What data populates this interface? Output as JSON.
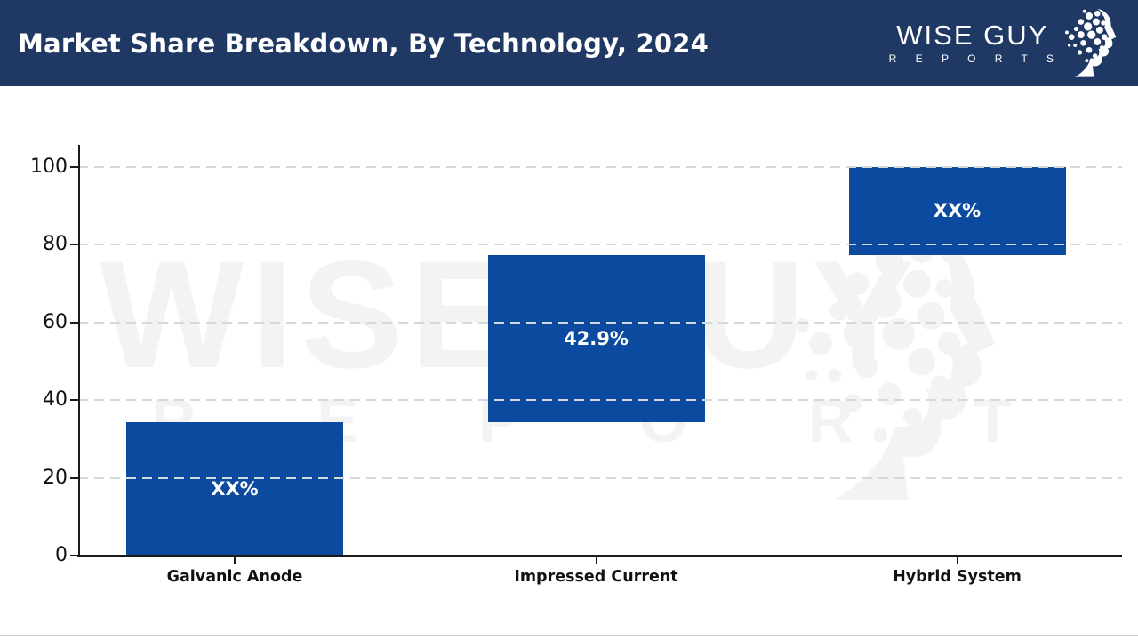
{
  "header": {
    "title": "Market Share Breakdown, By Technology, 2024",
    "logo_line1": "WISE GUY",
    "logo_line2": "R E P O R T S"
  },
  "watermark": {
    "line1": "WISE GUY",
    "line2": "R E P O R T S"
  },
  "colors": {
    "header_bg": "#1f3864",
    "bar": "#0b4a9e",
    "bar_label": "#ffffff",
    "grid_line": "#d8d8d8",
    "axis": "#1a1a1a",
    "watermark": "#f3f3f3"
  },
  "chart_data": {
    "type": "bar",
    "subtype": "floating-segment (waterfall style market-share breakdown)",
    "title": "Market Share Breakdown, By Technology, 2024",
    "categories": [
      "Galvanic Anode",
      "Impressed Current",
      "Hybrid System"
    ],
    "series": [
      {
        "name": "Market share (%)",
        "segments": [
          {
            "category": "Galvanic Anode",
            "start": 0,
            "end": 34.3,
            "label": "XX%"
          },
          {
            "category": "Impressed Current",
            "start": 34.3,
            "end": 77.2,
            "label": "42.9%"
          },
          {
            "category": "Hybrid System",
            "start": 77.2,
            "end": 100,
            "label": "XX%"
          }
        ]
      }
    ],
    "xlabel": "",
    "ylabel": "",
    "yticks": [
      0,
      20,
      40,
      60,
      80,
      100
    ],
    "ylim": [
      0,
      105.6
    ],
    "grid": "horizontal-dashed, drawn above bars",
    "legend": "none"
  }
}
